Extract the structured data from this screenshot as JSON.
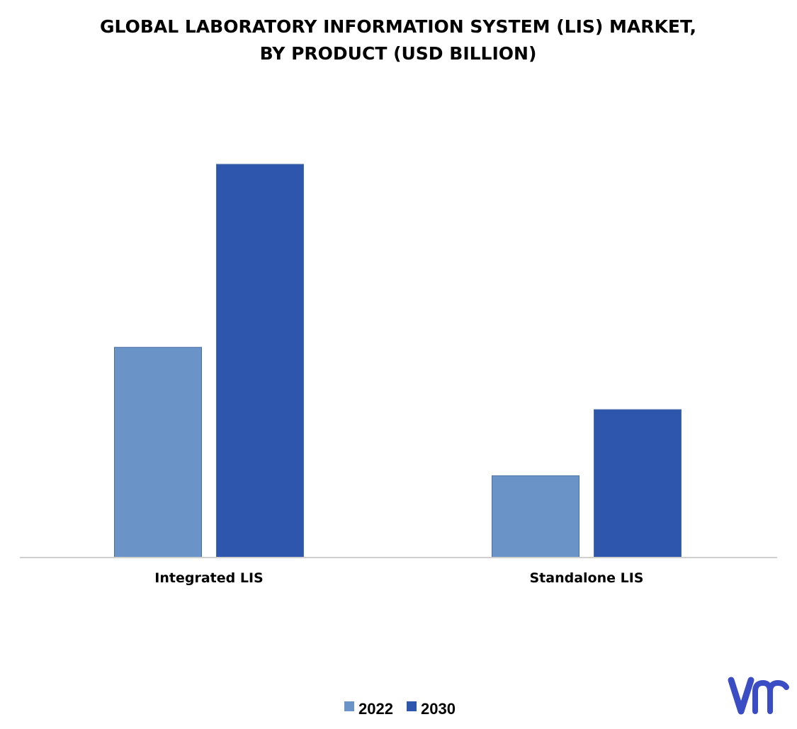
{
  "chart_data": {
    "type": "bar",
    "title": "GLOBAL LABORATORY INFORMATION SYSTEM (LIS) MARKET,",
    "subtitle": "BY PRODUCT (USD BILLION)",
    "categories": [
      "Integrated LIS",
      "Standalone LIS"
    ],
    "series": [
      {
        "name": "2022",
        "color": "#6a93c8",
        "values": [
          1.08,
          0.42
        ]
      },
      {
        "name": "2030",
        "color": "#2e56ad",
        "values": [
          2.02,
          0.76
        ]
      }
    ],
    "xlabel": "",
    "ylabel": "",
    "ylim": [
      0,
      2.5
    ],
    "grid": false,
    "legend_position": "bottom-center"
  },
  "logo": {
    "icon": "vmr-logo-icon",
    "color": "#3b4dc4"
  }
}
